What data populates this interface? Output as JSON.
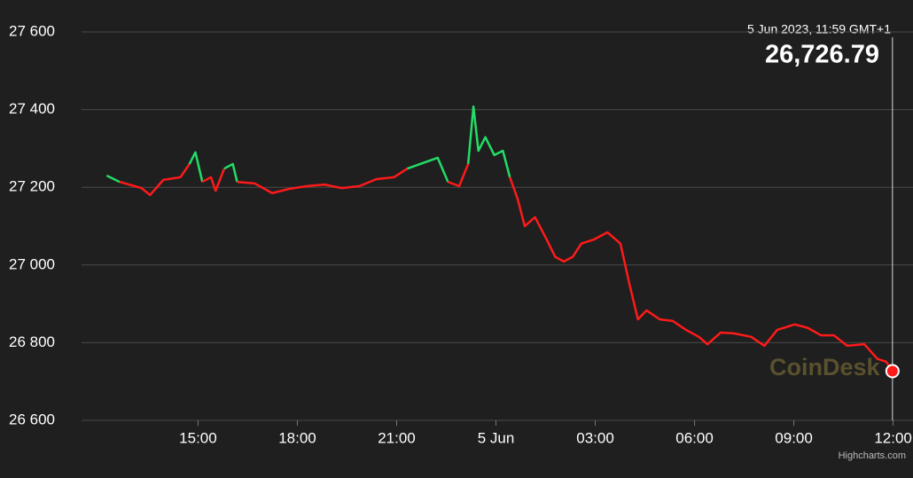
{
  "chart_data": {
    "type": "line",
    "x": [
      12.24,
      12.63,
      13.29,
      13.55,
      13.95,
      14.47,
      14.74,
      14.92,
      15.13,
      15.39,
      15.53,
      15.79,
      16.05,
      16.18,
      16.71,
      17.24,
      17.76,
      18.29,
      18.82,
      19.34,
      19.87,
      20.39,
      20.92,
      21.32,
      21.71,
      22.24,
      22.55,
      22.89,
      23.16,
      23.32,
      23.47,
      23.68,
      23.95,
      24.21,
      24.42,
      24.66,
      24.87,
      25.18,
      25.53,
      25.79,
      26.05,
      26.32,
      26.58,
      26.97,
      27.37,
      27.76,
      28.03,
      28.29,
      28.55,
      28.95,
      29.34,
      29.74,
      30.13,
      30.39,
      30.79,
      31.18,
      31.71,
      32.11,
      32.5,
      33.03,
      33.42,
      33.82,
      34.21,
      34.61,
      35.13,
      35.53,
      35.79,
      35.98
    ],
    "series": [
      {
        "color": "#ff1a1a",
        "up_color": "#22dd66",
        "values": [
          27230,
          27214,
          27198,
          27180,
          27219,
          27226,
          27260,
          27290,
          27214,
          27226,
          27191,
          27248,
          27260,
          27214,
          27210,
          27185,
          27196,
          27203,
          27207,
          27198,
          27203,
          27221,
          27226,
          27248,
          27260,
          27276,
          27214,
          27203,
          27260,
          27408,
          27294,
          27329,
          27283,
          27294,
          27226,
          27169,
          27100,
          27123,
          27066,
          27021,
          27009,
          27021,
          27055,
          27066,
          27084,
          27055,
          26952,
          26860,
          26883,
          26860,
          26856,
          26833,
          26815,
          26796,
          26826,
          26824,
          26815,
          26792,
          26833,
          26847,
          26838,
          26819,
          26819,
          26792,
          26796,
          26758,
          26751,
          26726.79
        ]
      }
    ],
    "xlim": [
      11.48,
      36.6
    ],
    "xticks": [
      {
        "value": 15,
        "label": "15:00"
      },
      {
        "value": 18,
        "label": "18:00"
      },
      {
        "value": 21,
        "label": "21:00"
      },
      {
        "value": 24,
        "label": "5 Jun"
      },
      {
        "value": 27,
        "label": "03:00"
      },
      {
        "value": 30,
        "label": "06:00"
      },
      {
        "value": 33,
        "label": "09:00"
      },
      {
        "value": 36,
        "label": "12:00"
      }
    ],
    "ylim": [
      26600,
      27600
    ],
    "yticks": [
      {
        "value": 26600,
        "label": "26 600"
      },
      {
        "value": 26800,
        "label": "26 800"
      },
      {
        "value": 27000,
        "label": "27 000"
      },
      {
        "value": 27200,
        "label": "27 200"
      },
      {
        "value": 27400,
        "label": "27 400"
      },
      {
        "value": 27600,
        "label": "27 600"
      }
    ],
    "grid": true,
    "tooltip_date": "5 Jun 2023, 11:59 GMT+1",
    "tooltip_value": "26,726.79",
    "watermark": "CoinDesk",
    "credits": "Highcharts.com"
  }
}
